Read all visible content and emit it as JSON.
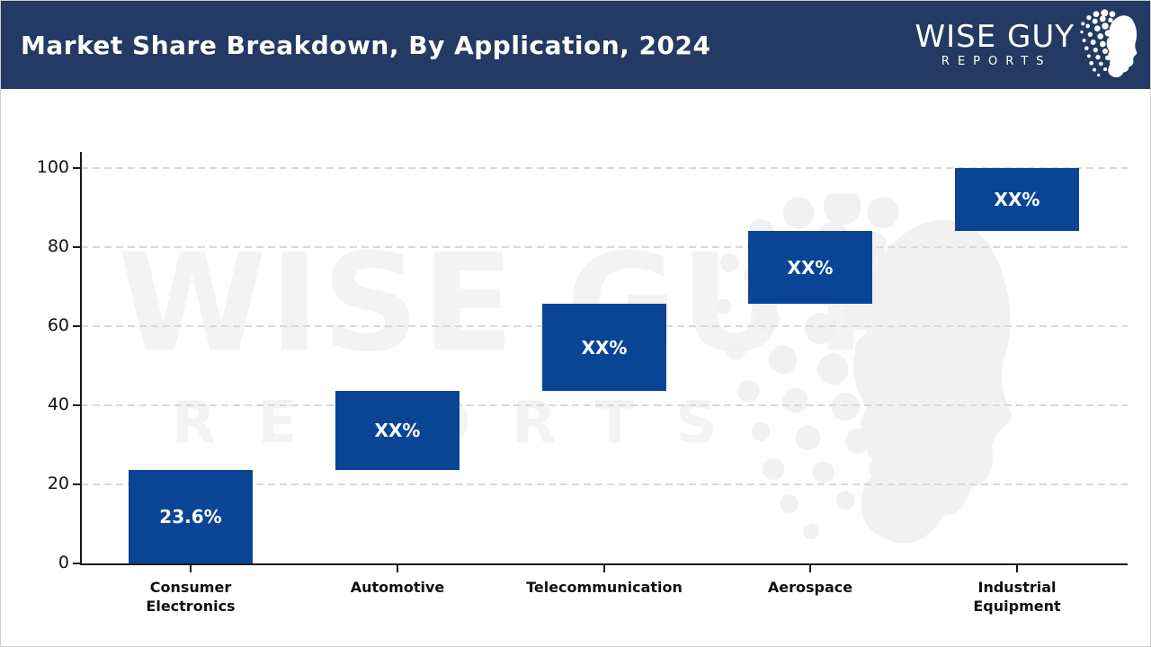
{
  "header": {
    "title": "Market Share Breakdown, By Application, 2024",
    "logo": {
      "line1": "WISE GUY",
      "line2": "REPORTS"
    }
  },
  "watermark": {
    "line1": "WISE GUY",
    "line2": "REPORTS"
  },
  "colors": {
    "header_bg": "#233a64",
    "bar": "#0a4595",
    "grid": "#d8d8d8",
    "axis": "#1a1a1a",
    "watermark": "#f3f3f3",
    "title_text": "#ffffff"
  },
  "chart_data": {
    "type": "bar",
    "variant": "waterfall",
    "title": "Market Share Breakdown, By Application, 2024",
    "xlabel": "",
    "ylabel": "",
    "yticks": [
      0,
      20,
      40,
      60,
      80,
      100
    ],
    "ylim": [
      0,
      105
    ],
    "grid": true,
    "legend": false,
    "bar_color": "#0a4595",
    "categories": [
      {
        "label": "Consumer Electronics",
        "lines": [
          "Consumer",
          "Electronics"
        ]
      },
      {
        "label": "Automotive",
        "lines": [
          "Automotive"
        ]
      },
      {
        "label": "Telecommunication",
        "lines": [
          "Telecommunication"
        ]
      },
      {
        "label": "Aerospace",
        "lines": [
          "Aerospace"
        ]
      },
      {
        "label": "Industrial Equipment",
        "lines": [
          "Industrial",
          "Equipment"
        ]
      }
    ],
    "segments": [
      {
        "category": "Consumer Electronics",
        "start": 0,
        "end": 23.6,
        "label": "23.6%"
      },
      {
        "category": "Automotive",
        "start": 23.6,
        "end": 43.6,
        "label": "XX%"
      },
      {
        "category": "Telecommunication",
        "start": 43.6,
        "end": 65.6,
        "label": "XX%"
      },
      {
        "category": "Aerospace",
        "start": 65.6,
        "end": 84.0,
        "label": "XX%"
      },
      {
        "category": "Industrial Equipment",
        "start": 84.0,
        "end": 100,
        "label": "XX%"
      }
    ]
  }
}
